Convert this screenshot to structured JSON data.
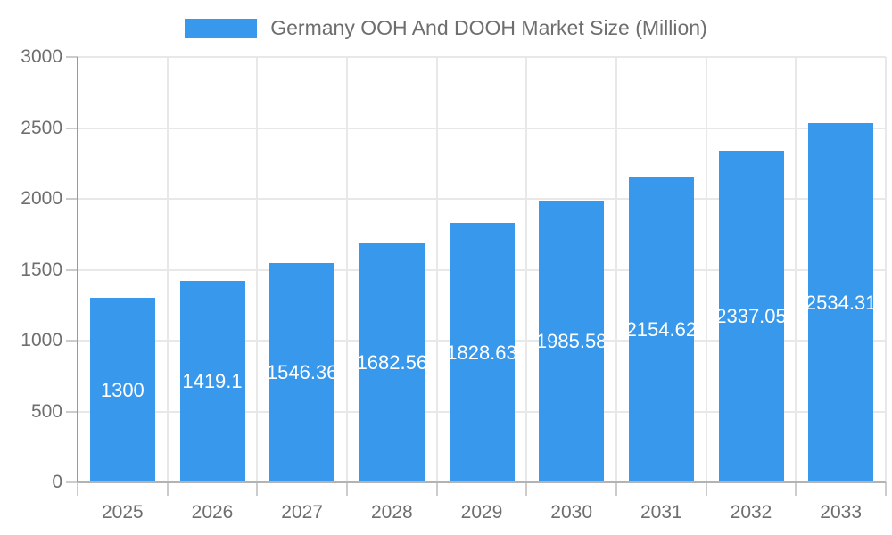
{
  "legend": {
    "label": "Germany OOH And DOOH Market Size (Million)"
  },
  "chart_data": {
    "type": "bar",
    "title": "Germany OOH And DOOH Market Size (Million)",
    "categories": [
      "2025",
      "2026",
      "2027",
      "2028",
      "2029",
      "2030",
      "2031",
      "2032",
      "2033"
    ],
    "values": [
      1300,
      1419.1,
      1546.36,
      1682.56,
      1828.63,
      1985.58,
      2154.62,
      2337.05,
      2534.31
    ],
    "value_labels": [
      "1300",
      "1419.1",
      "1546.36",
      "1682.56",
      "1828.63",
      "1985.58",
      "2154.62",
      "2337.05",
      "2534.31"
    ],
    "xlabel": "",
    "ylabel": "",
    "ylim": [
      0,
      3000
    ],
    "ytick_step": 500,
    "ytick_labels": [
      "0",
      "500",
      "1000",
      "1500",
      "2000",
      "2500",
      "3000"
    ],
    "grid": true,
    "legend_position": "top-center",
    "colors": {
      "bar": "#3898ec",
      "bar_label": "#ffffff",
      "grid_line": "#e8e8e8",
      "tick_line": "#cccccc",
      "y_axis_line": "#999999",
      "x_axis_line": "#b3b3b3",
      "tick_label_text": "#6e6e6e",
      "legend_text": "#6e6e6e",
      "background": "#ffffff"
    }
  }
}
